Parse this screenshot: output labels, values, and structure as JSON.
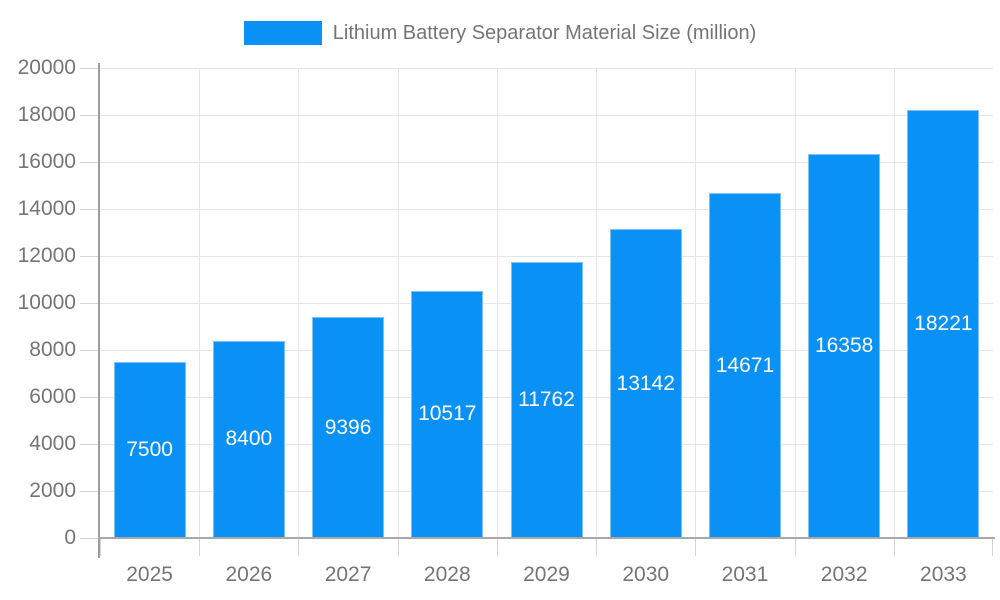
{
  "chart_data": {
    "type": "bar",
    "title": "Lithium Battery Separator Material Size (million)",
    "categories": [
      "2025",
      "2026",
      "2027",
      "2028",
      "2029",
      "2030",
      "2031",
      "2032",
      "2033"
    ],
    "values": [
      7500,
      8400,
      9396,
      10517,
      11762,
      13142,
      14671,
      16358,
      18221
    ],
    "xlabel": "",
    "ylabel": "",
    "ylim": [
      0,
      20000
    ],
    "ytick_values": [
      0,
      2000,
      4000,
      6000,
      8000,
      10000,
      12000,
      14000,
      16000,
      18000,
      20000
    ],
    "grid": true,
    "value_labels_shown": true,
    "legend": {
      "position": "top",
      "entries": [
        "Lithium Battery Separator Material Size (million)"
      ]
    },
    "colors": {
      "bar": "#0991f5",
      "grid": "#e6e6e6",
      "axis": "#9e9e9e",
      "tick": "#d4d4d4",
      "axis_label": "#757575",
      "value_label": "#ffffff",
      "background": "#ffffff"
    }
  }
}
